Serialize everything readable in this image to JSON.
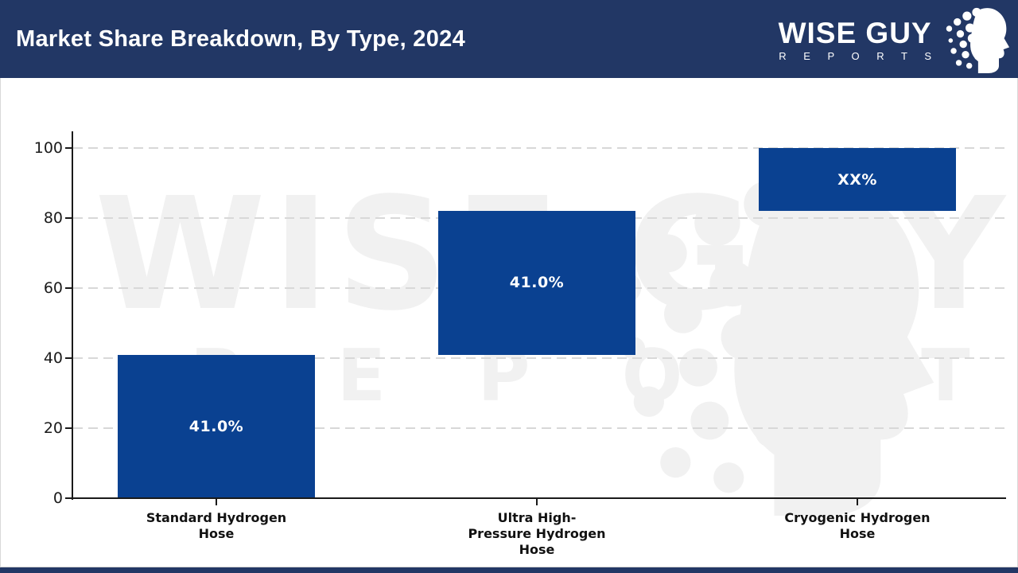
{
  "header": {
    "title": "Market Share Breakdown, By Type, 2024",
    "logo": {
      "brand_line1": "WISE GUY",
      "brand_line2": "R E P O R T S"
    }
  },
  "watermark": {
    "line1": "WISE GUY",
    "line2": "R E P O R T S"
  },
  "chart_data": {
    "type": "bar",
    "subtype": "waterfall-stacked-percentage",
    "title": "Market Share Breakdown, By Type, 2024",
    "categories": [
      "Standard Hydrogen\nHose",
      "Ultra High-\nPressure Hydrogen\nHose",
      "Cryogenic Hydrogen\nHose"
    ],
    "bars": [
      {
        "category": "Standard Hydrogen\nHose",
        "start": 0,
        "end": 41,
        "value_label": "41.0%"
      },
      {
        "category": "Ultra High-\nPressure Hydrogen\nHose",
        "start": 41,
        "end": 82,
        "value_label": "41.0%"
      },
      {
        "category": "Cryogenic Hydrogen\nHose",
        "start": 82,
        "end": 100,
        "value_label": "XX%"
      }
    ],
    "y_ticks": [
      0,
      20,
      40,
      60,
      80,
      100
    ],
    "ylim": [
      0,
      105
    ],
    "grid": {
      "horizontal": true,
      "style": "dashed",
      "color": "#d8d8d8"
    },
    "legend": null,
    "colors": {
      "bar": "#0a4191",
      "bar_label": "#ffffff",
      "axis": "#1a1a1a",
      "header_bg": "#223765",
      "watermark": "#f1f1f1"
    }
  }
}
